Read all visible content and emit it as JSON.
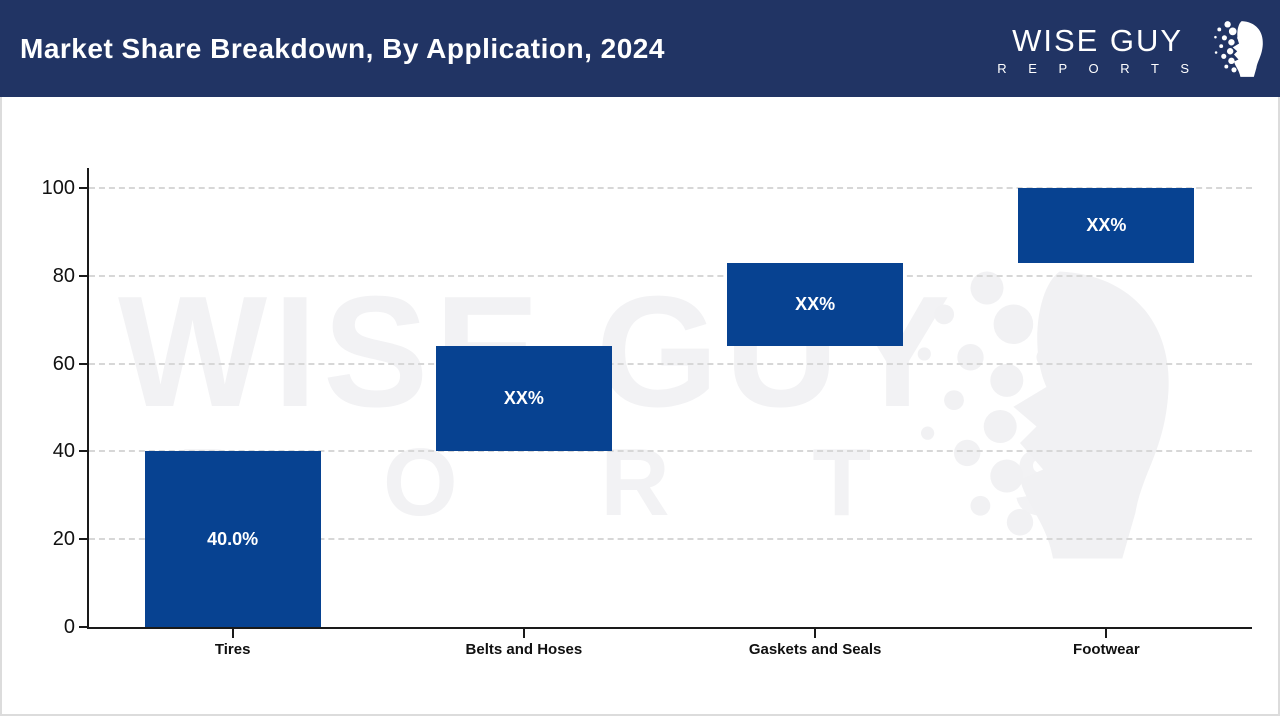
{
  "header": {
    "title": "Market Share Breakdown, By Application, 2024",
    "background": "#213464",
    "logo": {
      "line1": "WISE GUY",
      "line2": "R E P O R T S"
    }
  },
  "watermark": {
    "line1": "WISE GUY",
    "line2": "P O R T S"
  },
  "chart_data": {
    "type": "bar",
    "subtype": "waterfall-floating-bars",
    "title": "Market Share Breakdown, By Application, 2024",
    "categories": [
      "Tires",
      "Belts and Hoses",
      "Gaskets and Seals",
      "Footwear"
    ],
    "series": [
      {
        "name": "Market Share",
        "segments": [
          {
            "category": "Tires",
            "start": 0,
            "end": 40,
            "label": "40.0%"
          },
          {
            "category": "Belts and Hoses",
            "start": 40,
            "end": 64,
            "label": "XX%"
          },
          {
            "category": "Gaskets and Seals",
            "start": 64,
            "end": 83,
            "label": "XX%"
          },
          {
            "category": "Footwear",
            "start": 83,
            "end": 100,
            "label": "XX%"
          }
        ]
      }
    ],
    "xlabel": "",
    "ylabel": "",
    "ylim": [
      0,
      100
    ],
    "yticks": [
      0,
      20,
      40,
      60,
      80,
      100
    ],
    "grid": "horizontal-dashed",
    "legend": "none",
    "bar_color": "#074291",
    "bar_label_color": "#ffffff",
    "axis_color": "#1a1a1a",
    "gridline_color": "#d7d7d7"
  }
}
